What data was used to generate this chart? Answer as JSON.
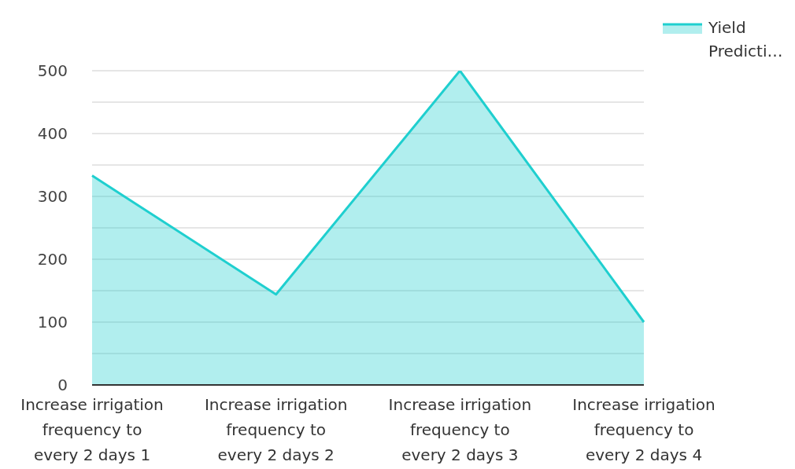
{
  "chart_data": {
    "type": "area",
    "categories": [
      "Increase irrigation\nfrequency to\nevery 2 days 1",
      "Increase irrigation\nfrequency to\nevery 2 days 2",
      "Increase irrigation\nfrequency to\nevery 2 days 3",
      "Increase irrigation\nfrequency to\nevery 2 days 4"
    ],
    "series": [
      {
        "name": "Yield\nPredicti…",
        "color": "#1fcfcf",
        "values": [
          333,
          144,
          500,
          100
        ]
      }
    ],
    "ylim": [
      0,
      500
    ],
    "yticks": [
      0,
      {
        "value": 50,
        "label": null
      },
      100,
      {
        "value": 150,
        "label": null
      },
      200,
      {
        "value": 250,
        "label": null
      },
      300,
      {
        "value": 350,
        "label": null
      },
      400,
      {
        "value": 450,
        "label": null
      },
      500
    ],
    "grid": "y",
    "legend": "top right",
    "marker": "none"
  }
}
